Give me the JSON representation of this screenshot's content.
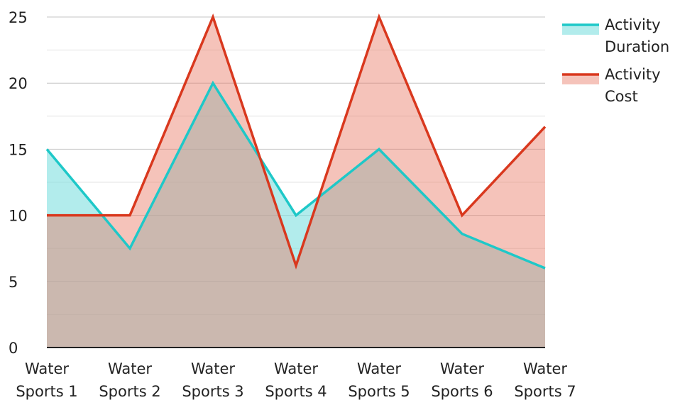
{
  "chart_data": {
    "type": "area",
    "title": "",
    "xlabel": "",
    "ylabel": "",
    "categories": [
      [
        "Water",
        "Sports 1"
      ],
      [
        "Water",
        "Sports 2"
      ],
      [
        "Water",
        "Sports 3"
      ],
      [
        "Water",
        "Sports 4"
      ],
      [
        "Water",
        "Sports 5"
      ],
      [
        "Water",
        "Sports 6"
      ],
      [
        "Water",
        "Sports 7"
      ]
    ],
    "ylim": [
      0,
      25
    ],
    "yticks": [
      "0",
      "5",
      "10",
      "15",
      "20",
      "25"
    ],
    "grid": true,
    "legend_position": "top-right",
    "series": [
      {
        "name_lines": [
          "Activity",
          "Duration"
        ],
        "values": [
          15,
          7.5,
          20,
          10,
          15,
          8.6,
          6
        ],
        "line_color": "#1ec8c8",
        "fill_color": "#7fe0e0",
        "fill_opacity": 0.6
      },
      {
        "name_lines": [
          "Activity",
          "Cost"
        ],
        "values": [
          10,
          10,
          25,
          6.2,
          25,
          10,
          16.7
        ],
        "line_color": "#d9381e",
        "fill_color": "#e87a66",
        "fill_opacity": 0.45
      }
    ]
  }
}
